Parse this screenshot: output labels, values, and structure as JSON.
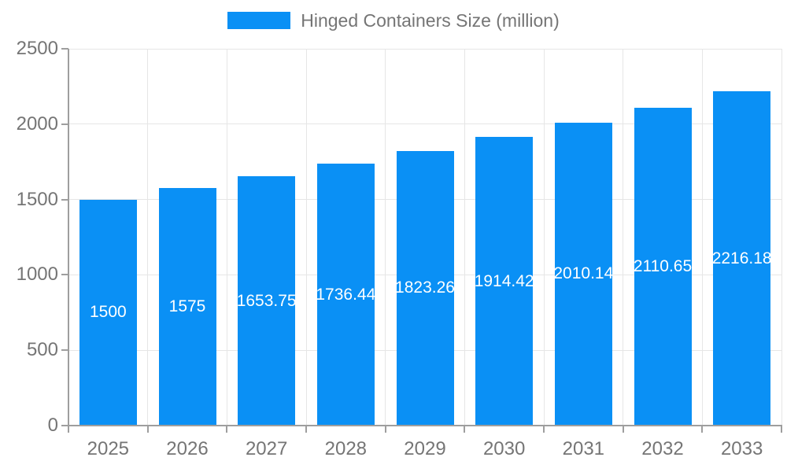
{
  "chart_data": {
    "type": "bar",
    "title": "Hinged Containers Size (million)",
    "categories": [
      "2025",
      "2026",
      "2027",
      "2028",
      "2029",
      "2030",
      "2031",
      "2032",
      "2033"
    ],
    "values": [
      1500,
      1575,
      1653.75,
      1736.44,
      1823.26,
      1914.42,
      2010.14,
      2110.65,
      2216.18
    ],
    "value_labels": [
      "1500",
      "1575",
      "1653.75",
      "1736.44",
      "1823.26",
      "1914.42",
      "2010.14",
      "2110.65",
      "2216.18"
    ],
    "series_name": "Hinged Containers Size (million)",
    "xlabel": "",
    "ylabel": "",
    "ylim": [
      0,
      2500
    ],
    "yticks": [
      0,
      500,
      1000,
      1500,
      2000,
      2500
    ],
    "grid": true,
    "legend_position": "top-center",
    "colors": {
      "bar": "#0a90f5",
      "grid": "#e6e6e6",
      "axis": "#9e9e9e",
      "tick_label": "#757575",
      "legend_label": "#757575",
      "value_label": "#ffffff",
      "background": "#ffffff"
    }
  }
}
